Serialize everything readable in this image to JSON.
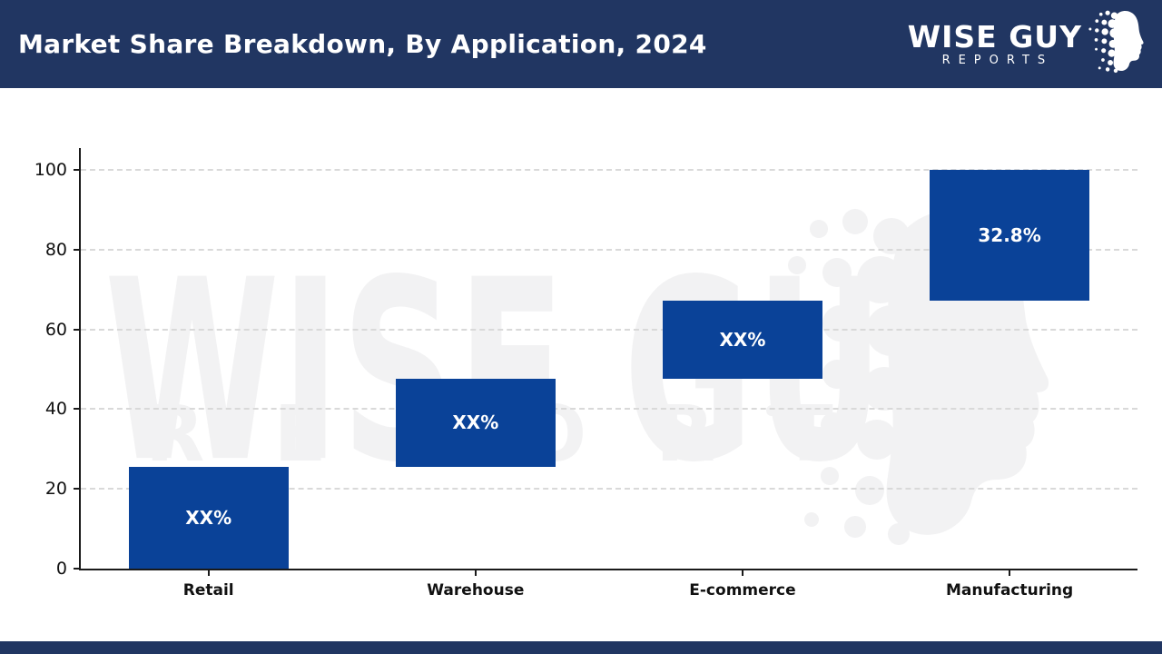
{
  "header": {
    "title": "Market Share Breakdown, By Application, 2024"
  },
  "logo": {
    "name": "WISE GUY",
    "subtitle": "REPORTS"
  },
  "watermark": {
    "line1": "WISE GUY",
    "line2": "REPORTS"
  },
  "chart_data": {
    "type": "bar",
    "subtype": "waterfall",
    "title": "Market Share Breakdown, By Application, 2024",
    "categories": [
      "Retail",
      "Warehouse",
      "E-commerce",
      "Manufacturing"
    ],
    "segments": [
      {
        "category": "Retail",
        "start": 0,
        "end": 25.6,
        "value": 25.6,
        "label": "XX%"
      },
      {
        "category": "Warehouse",
        "start": 25.6,
        "end": 47.7,
        "value": 22.1,
        "label": "XX%"
      },
      {
        "category": "E-commerce",
        "start": 47.7,
        "end": 67.2,
        "value": 19.5,
        "label": "XX%"
      },
      {
        "category": "Manufacturing",
        "start": 67.2,
        "end": 100,
        "value": 32.8,
        "label": "32.8%"
      }
    ],
    "yticks": [
      0,
      20,
      40,
      60,
      80,
      100
    ],
    "ylim": [
      0,
      105.5
    ],
    "xlabel": "",
    "ylabel": "",
    "grid": "horizontal-dashed",
    "legend": "none",
    "bar_color": "#0a4298",
    "bar_label_color": "#ffffff",
    "axis_color": "#1a1a1a",
    "grid_color": "#d9d9d9"
  },
  "colors": {
    "header_bg": "#213662",
    "footer_bg": "#213662",
    "watermark": "#f2f2f3"
  }
}
